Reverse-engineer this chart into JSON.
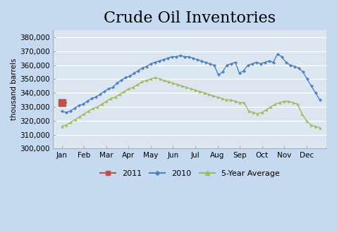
{
  "title": "Crude Oil Inventories",
  "ylabel": "thousand barrels",
  "ylim": [
    300000,
    385000
  ],
  "yticks": [
    300000,
    310000,
    320000,
    330000,
    340000,
    350000,
    360000,
    370000,
    380000
  ],
  "months": [
    "Jan",
    "Feb",
    "Mar",
    "Apr",
    "May",
    "Jun",
    "Jul",
    "Aug",
    "Sep",
    "Oct",
    "Nov",
    "Dec"
  ],
  "data_2011_y": [
    333000
  ],
  "data_2010_y": [
    327000,
    326000,
    327000,
    329000,
    331000,
    332000,
    334000,
    336000,
    337000,
    339000,
    341000,
    343000,
    344000,
    347000,
    349000,
    351000,
    352000,
    354000,
    356000,
    358000,
    359000,
    361000,
    362000,
    363000,
    364000,
    365000,
    366000,
    366000,
    367000,
    366000,
    366000,
    365000,
    364000,
    363000,
    362000,
    361000,
    360000,
    353000,
    355000,
    360000,
    361000,
    362000,
    354000,
    356000,
    360000,
    361000,
    362000,
    361000,
    362000,
    363000,
    362000,
    368000,
    366000,
    362000,
    360000,
    359000,
    358000,
    355000,
    350000,
    345000,
    340000,
    335000
  ],
  "data_5yr_y": [
    316000,
    317000,
    319000,
    321000,
    323000,
    325000,
    327000,
    329000,
    330000,
    332000,
    334000,
    336000,
    337000,
    339000,
    341000,
    343000,
    344000,
    346000,
    348000,
    349000,
    350000,
    351000,
    350000,
    349000,
    348000,
    347000,
    346000,
    345000,
    344000,
    343000,
    342000,
    341000,
    340000,
    339000,
    338000,
    337000,
    336000,
    335000,
    335000,
    334000,
    333000,
    333000,
    327000,
    326000,
    325000,
    326000,
    328000,
    330000,
    332000,
    333000,
    334000,
    334000,
    333000,
    332000,
    325000,
    320000,
    317000,
    316000,
    315000
  ],
  "color_2011": "#c0504d",
  "color_2010": "#4f81bd",
  "color_5yr": "#9bbb59",
  "background_color": "#dce6f1",
  "outer_bg_color": "#c5d9f1",
  "title_fontsize": 16,
  "legend_fontsize": 8,
  "axis_fontsize": 7.5
}
